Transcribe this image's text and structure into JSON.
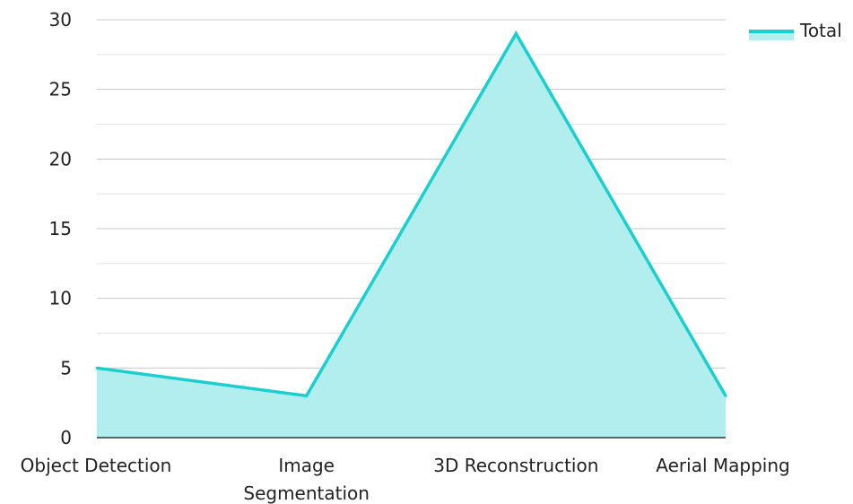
{
  "chart_data": {
    "type": "area",
    "categories": [
      "Object Detection",
      "Image Segmentation",
      "3D Reconstruction",
      "Aerial Mapping"
    ],
    "category_lines": [
      [
        "Object Detection"
      ],
      [
        "Image",
        "Segmentation"
      ],
      [
        "3D Reconstruction"
      ],
      [
        "Aerial Mapping"
      ]
    ],
    "series": [
      {
        "name": "Total",
        "values": [
          5,
          3,
          29,
          3
        ]
      }
    ],
    "ylim": [
      0,
      30
    ],
    "yticks": [
      0,
      5,
      10,
      15,
      20,
      25,
      30
    ],
    "grid": true,
    "legend": "top-right",
    "line_color": "#1ccfcf",
    "fill_color": "#b3eeee"
  }
}
